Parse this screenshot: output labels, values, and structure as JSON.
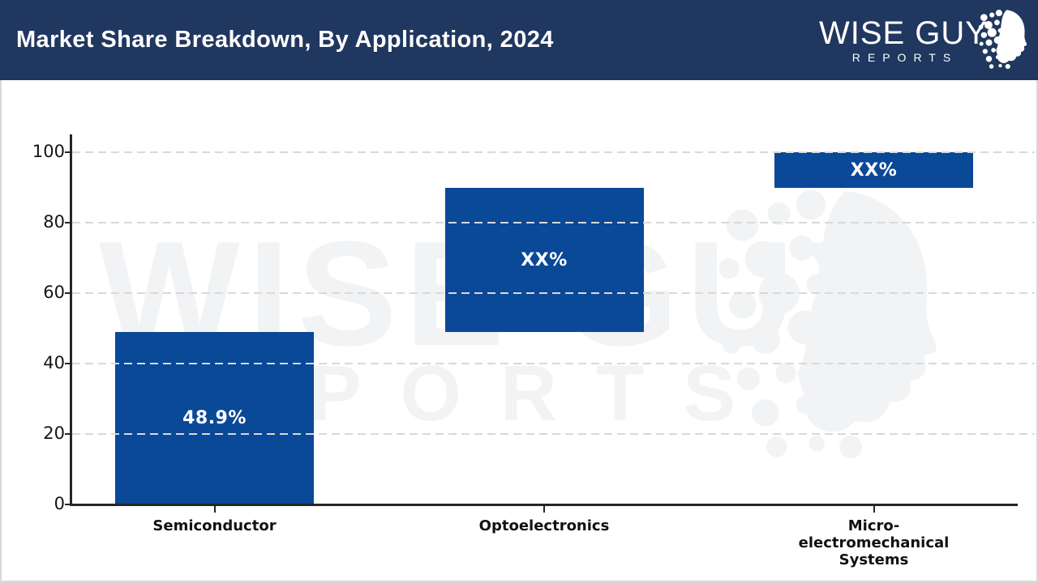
{
  "header": {
    "title": "Market Share Breakdown, By Application, 2024",
    "logo": {
      "wordmark": "WISE GUY",
      "subtext": "REPORTS"
    }
  },
  "watermark": {
    "line1": "WISE GUY",
    "line2": "REPORTS"
  },
  "chart_data": {
    "type": "bar",
    "subtype": "waterfall",
    "title": "Market Share Breakdown, By Application, 2024",
    "categories": [
      "Semiconductor",
      "Optoelectronics",
      "Micro-electromechanical Systems"
    ],
    "categories_display": [
      [
        "Semiconductor"
      ],
      [
        "Optoelectronics"
      ],
      [
        "Micro-",
        "electromechanical",
        "Systems"
      ]
    ],
    "segments": [
      {
        "category": "Semiconductor",
        "start": 0,
        "end": 48.9,
        "label": "48.9%"
      },
      {
        "category": "Optoelectronics",
        "start": 48.9,
        "end": 89.8,
        "label": "XX%"
      },
      {
        "category": "Micro-electromechanical Systems",
        "start": 89.8,
        "end": 100,
        "label": "XX%"
      }
    ],
    "ylim": [
      0,
      105
    ],
    "yticks": [
      0,
      20,
      40,
      60,
      80,
      100
    ],
    "grid": "horizontal-dashed",
    "legend": "none",
    "colors": {
      "bar": "#0a4898",
      "header_bg": "#20375f",
      "grid": "#d9d9d9",
      "axis": "#262626",
      "watermark": "#f2f3f5",
      "bar_label": "#ffffff",
      "tick_label": "#141414"
    }
  }
}
